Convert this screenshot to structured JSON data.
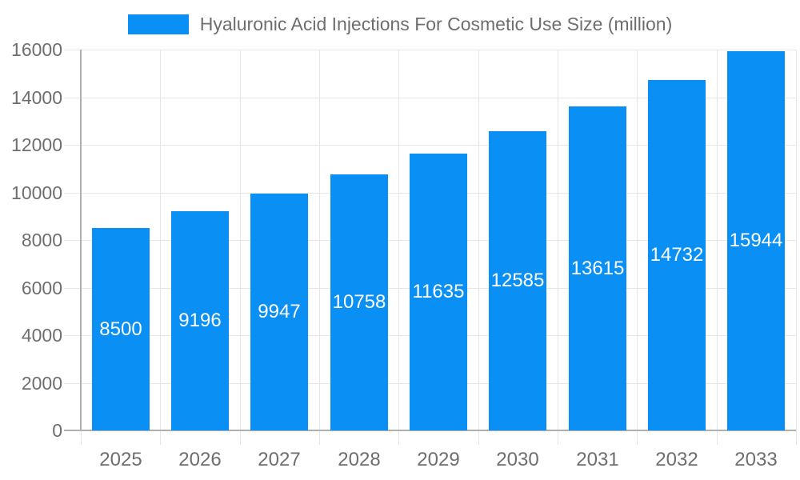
{
  "legend": {
    "series_label": "Hyaluronic Acid Injections For Cosmetic Use Size (million)"
  },
  "chart_data": {
    "type": "bar",
    "title": "Hyaluronic Acid Injections For Cosmetic Use Size (million)",
    "categories": [
      "2025",
      "2026",
      "2027",
      "2028",
      "2029",
      "2030",
      "2031",
      "2032",
      "2033"
    ],
    "values": [
      8500,
      9196,
      9947,
      10758,
      11635,
      12585,
      13615,
      14732,
      15944
    ],
    "value_labels": [
      "8500",
      "9196",
      "9947",
      "10758",
      "11635",
      "12585",
      "13615",
      "14732",
      "15944"
    ],
    "xlabel": "",
    "ylabel": "",
    "ylim": [
      0,
      16000
    ],
    "ytick_step": 2000,
    "ytick_labels": [
      "0",
      "2000",
      "4000",
      "6000",
      "8000",
      "10000",
      "12000",
      "14000",
      "16000"
    ],
    "grid": "horizontal and vertical gridlines on",
    "legend_position": "top-center",
    "value_label_position": "inside-center",
    "colors": {
      "bar": "#0A90F5",
      "value_label": "#FFFFFF",
      "axis_text": "#6E6E6E",
      "grid_line": "#E6E6E6",
      "axis_line": "#B0B0B0"
    }
  }
}
